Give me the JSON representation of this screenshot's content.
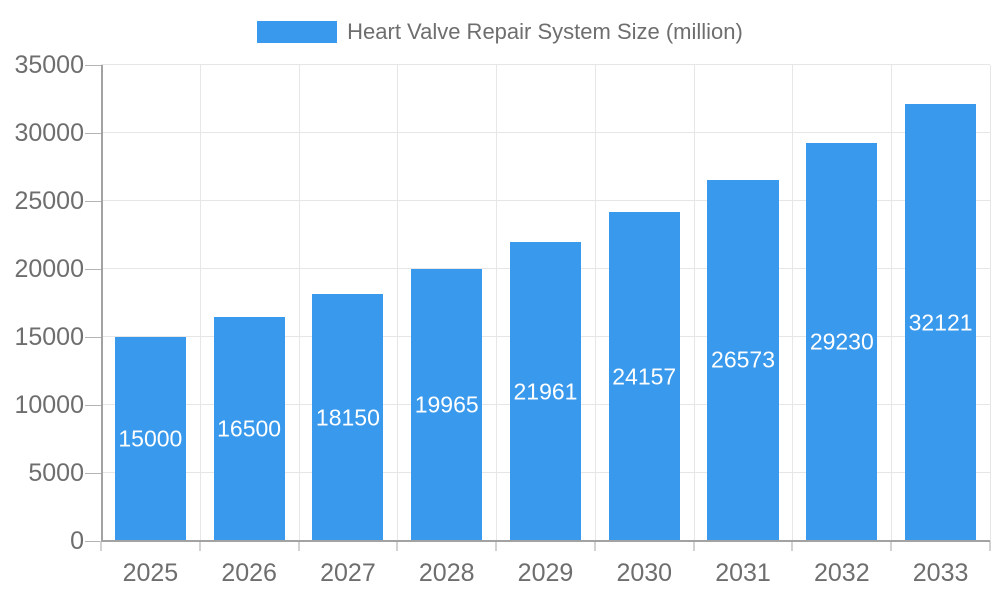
{
  "chart_data": {
    "type": "bar",
    "legend": {
      "position": "top",
      "label": "Heart Valve Repair System Size (million)"
    },
    "categories": [
      "2025",
      "2026",
      "2027",
      "2028",
      "2029",
      "2030",
      "2031",
      "2032",
      "2033"
    ],
    "values": [
      15000,
      16500,
      18150,
      19965,
      21961,
      24157,
      26573,
      29230,
      32121
    ],
    "xlabel": "",
    "ylabel": "",
    "ylim": [
      0,
      35000
    ],
    "yticks": [
      0,
      5000,
      10000,
      15000,
      20000,
      25000,
      30000,
      35000
    ],
    "grid": true,
    "value_labels_inside_bars": true,
    "colors": {
      "bar": "#3999EC",
      "bar_value_text": "#FFFFFF",
      "axis_text": "#6E6E6E",
      "legend_text": "#6E6E6E",
      "gridline": "#E6E6E6",
      "axis_line": "#A2A2A2",
      "y_tick": "#B3B3B3",
      "x_tick": "#D2D2D2",
      "background": "#FFFFFF"
    }
  }
}
